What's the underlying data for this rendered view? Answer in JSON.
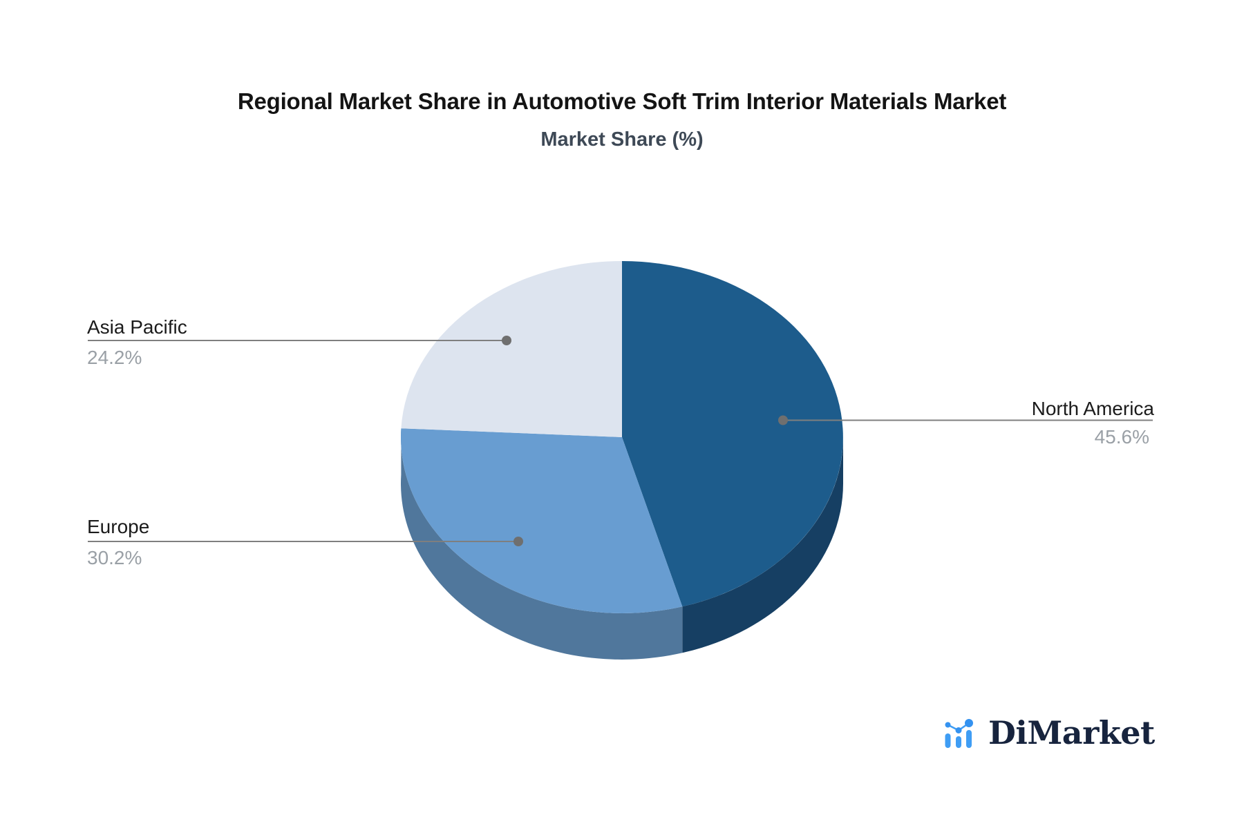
{
  "title": "Regional Market Share in Automotive Soft Trim Interior Materials Market",
  "subtitle": "Market Share (%)",
  "chart_data": {
    "type": "pie",
    "title": "Regional Market Share in Automotive Soft Trim Interior Materials Market",
    "subtitle": "Market Share (%)",
    "unit": "%",
    "style": "3d-pie",
    "start_angle_deg": 0,
    "direction": "clockwise",
    "slices": [
      {
        "label": "North America",
        "value": 45.6,
        "display": "45.6%",
        "color": "#1d5c8c",
        "rim_color": "#163f63"
      },
      {
        "label": "Europe",
        "value": 30.2,
        "display": "30.2%",
        "color": "#689dd1",
        "rim_color": "#50779c"
      },
      {
        "label": "Asia Pacific",
        "value": 24.2,
        "display": "24.2%",
        "color": "#dde4ef",
        "rim_color": "#b9c4d6"
      }
    ],
    "legend": "none",
    "data_labels": "outside with connector lines"
  },
  "labels": {
    "north_america": {
      "name": "North America",
      "pct": "45.6%"
    },
    "europe": {
      "name": "Europe",
      "pct": "30.2%"
    },
    "asia_pacific": {
      "name": "Asia Pacific",
      "pct": "24.2%"
    }
  },
  "branding": {
    "logo_text": "DiMarket"
  },
  "colors": {
    "background": "#ffffff",
    "title_text": "#141414",
    "subtitle_text": "#3e4956",
    "label_name_text": "#1b1b1b",
    "label_pct_text": "#9aa0a6",
    "connector_line": "#7f7f7f",
    "connector_dot": "#6f6f6f",
    "logo_text": "#17243e",
    "logo_icon_blue": "#3f9df4"
  }
}
